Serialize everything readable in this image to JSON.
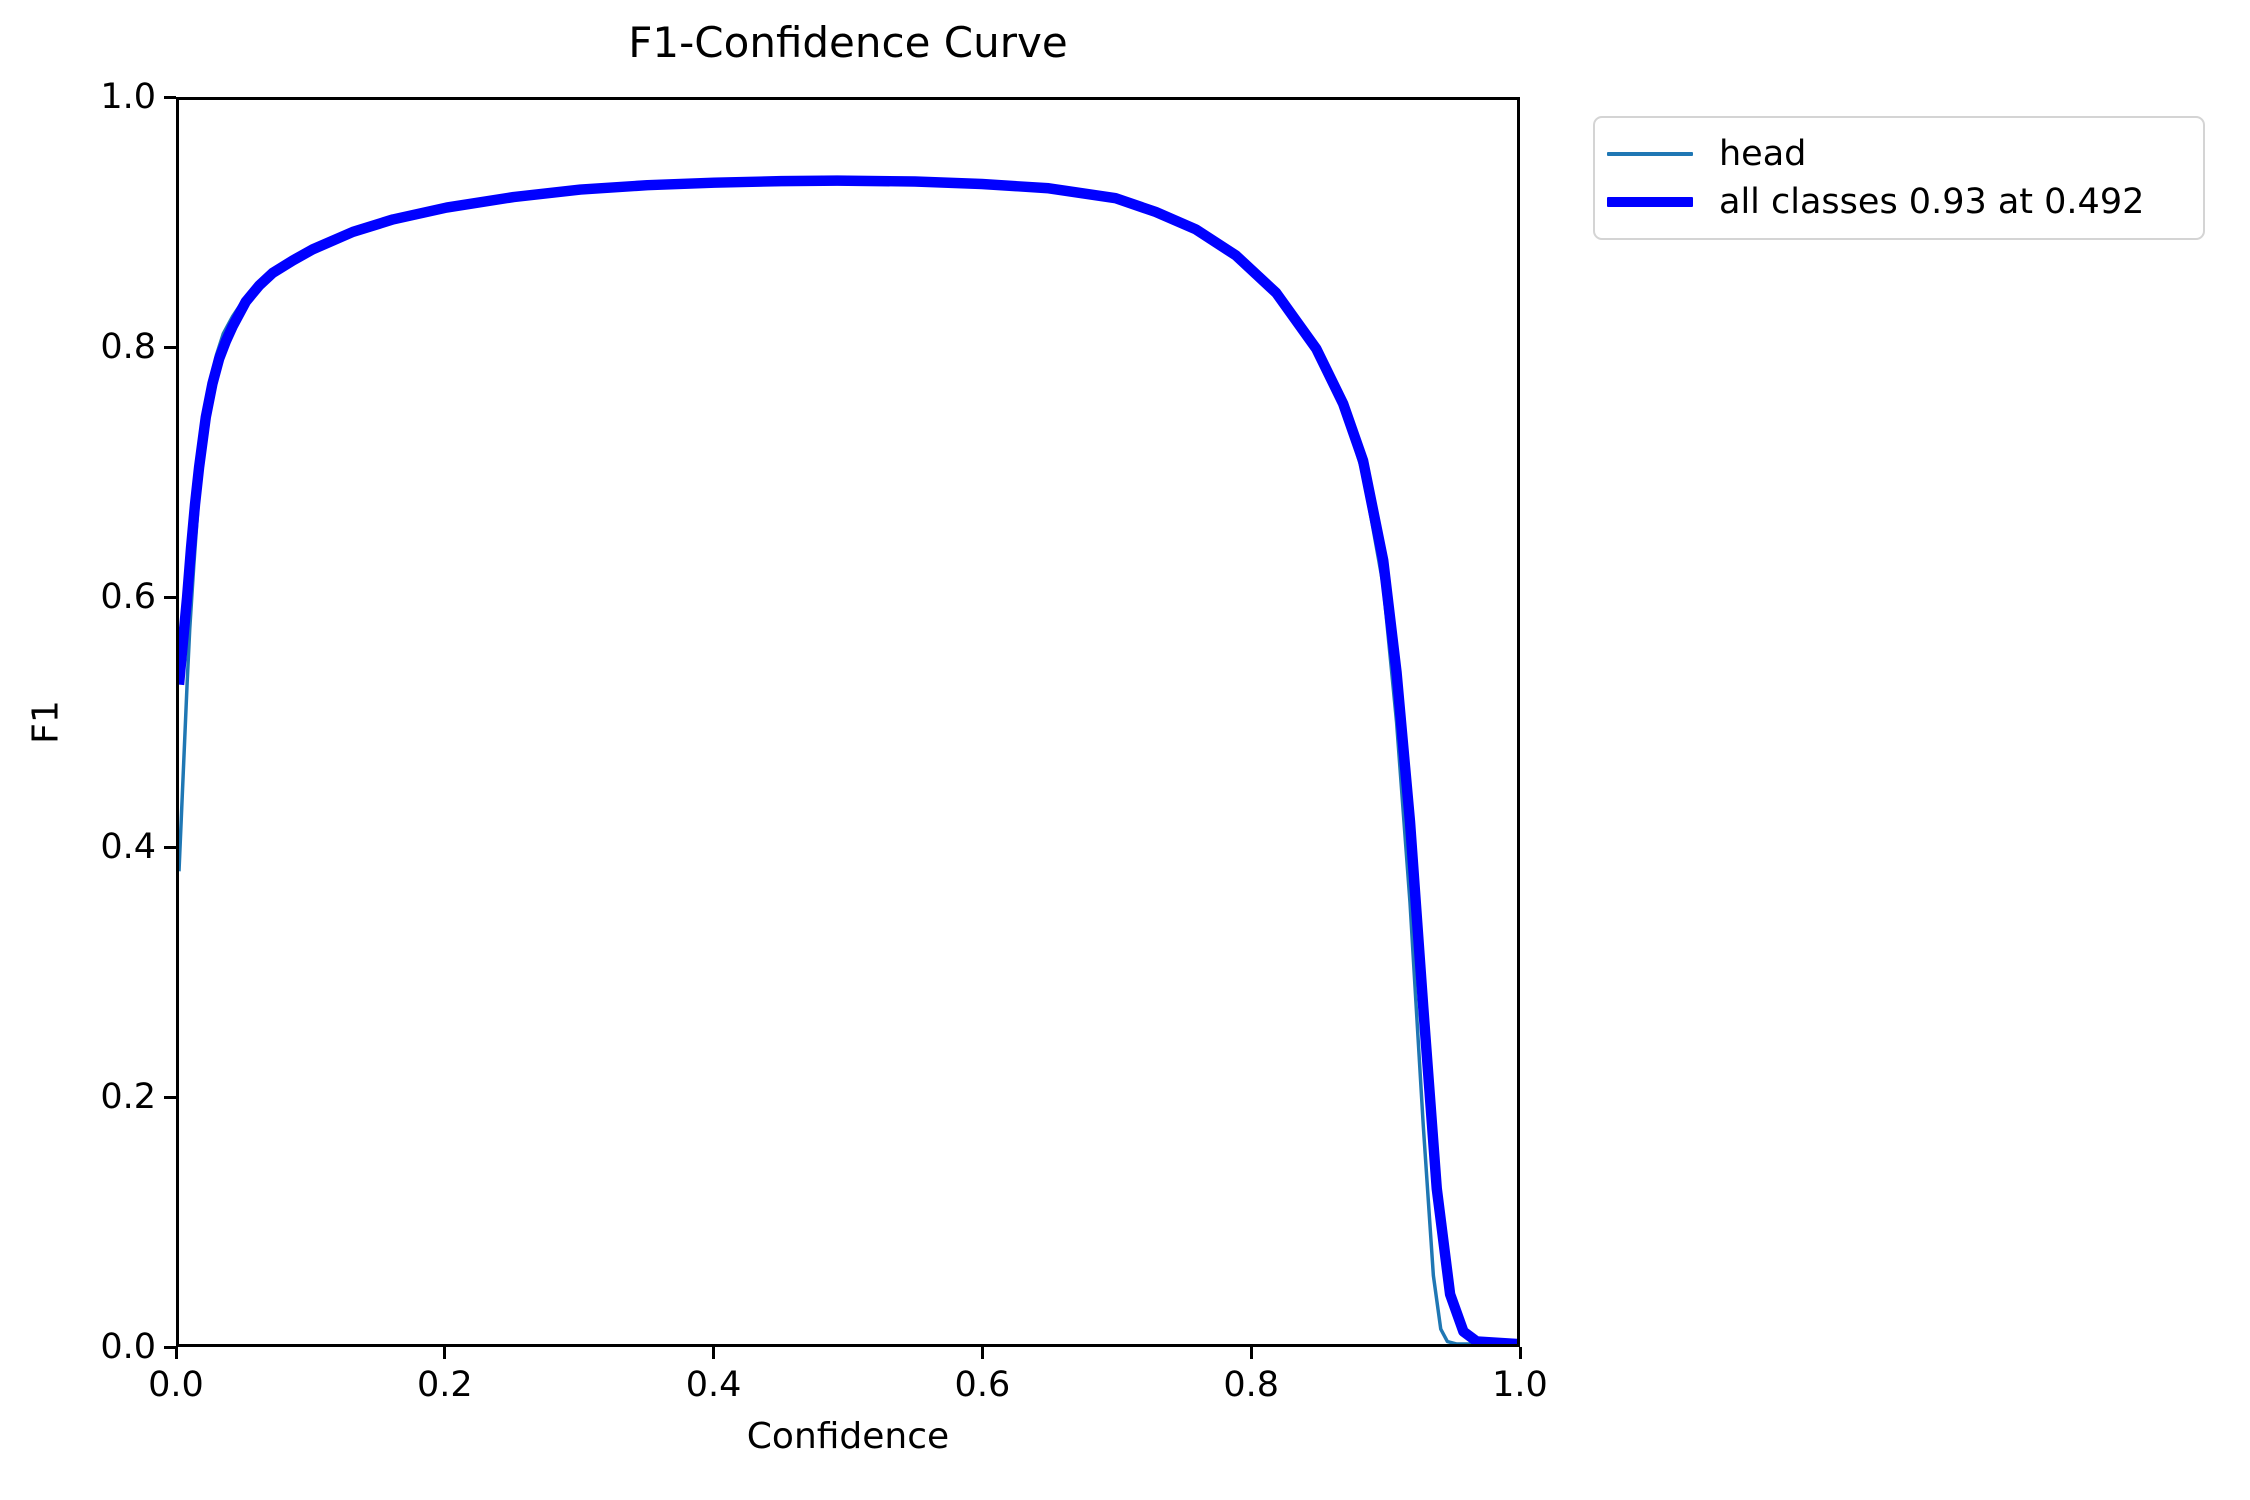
{
  "accent_colors": {
    "head_line": "#1f77b4",
    "all_classes_line": "#0000ff",
    "axis": "#000000",
    "legend_border": "#d4d4d4"
  },
  "chart_data": {
    "type": "line",
    "title": "F1-Confidence Curve",
    "xlabel": "Confidence",
    "ylabel": "F1",
    "xlim": [
      0.0,
      1.0
    ],
    "ylim": [
      0.0,
      1.0
    ],
    "grid": false,
    "legend_position": "outside-upper-right",
    "x_ticks": {
      "values": [
        0.0,
        0.2,
        0.4,
        0.6,
        0.8,
        1.0
      ],
      "labels": [
        "0.0",
        "0.2",
        "0.4",
        "0.6",
        "0.8",
        "1.0"
      ]
    },
    "y_ticks": {
      "values": [
        0.0,
        0.2,
        0.4,
        0.6,
        0.8,
        1.0
      ],
      "labels": [
        "0.0",
        "0.2",
        "0.4",
        "0.6",
        "0.8",
        "1.0"
      ]
    },
    "best_f1": 0.93,
    "best_confidence": 0.492,
    "series": [
      {
        "name": "head",
        "label": "head",
        "color": "#1f77b4",
        "stroke_px": 3.5,
        "points": [
          [
            0.0,
            0.38
          ],
          [
            0.002,
            0.43
          ],
          [
            0.004,
            0.48
          ],
          [
            0.006,
            0.53
          ],
          [
            0.008,
            0.575
          ],
          [
            0.011,
            0.625
          ],
          [
            0.014,
            0.67
          ],
          [
            0.017,
            0.71
          ],
          [
            0.02,
            0.745
          ],
          [
            0.024,
            0.775
          ],
          [
            0.028,
            0.795
          ],
          [
            0.033,
            0.812
          ],
          [
            0.04,
            0.826
          ],
          [
            0.05,
            0.842
          ],
          [
            0.06,
            0.854
          ],
          [
            0.07,
            0.863
          ],
          [
            0.085,
            0.872
          ],
          [
            0.1,
            0.881
          ],
          [
            0.13,
            0.894
          ],
          [
            0.16,
            0.904
          ],
          [
            0.2,
            0.9135
          ],
          [
            0.25,
            0.922
          ],
          [
            0.3,
            0.928
          ],
          [
            0.35,
            0.9315
          ],
          [
            0.4,
            0.9335
          ],
          [
            0.45,
            0.9348
          ],
          [
            0.5,
            0.935
          ],
          [
            0.55,
            0.9345
          ],
          [
            0.6,
            0.9325
          ],
          [
            0.65,
            0.929
          ],
          [
            0.7,
            0.921
          ],
          [
            0.73,
            0.91
          ],
          [
            0.76,
            0.896
          ],
          [
            0.79,
            0.875
          ],
          [
            0.82,
            0.845
          ],
          [
            0.85,
            0.798
          ],
          [
            0.87,
            0.752
          ],
          [
            0.885,
            0.7
          ],
          [
            0.9,
            0.61
          ],
          [
            0.91,
            0.5
          ],
          [
            0.92,
            0.355
          ],
          [
            0.93,
            0.175
          ],
          [
            0.9375,
            0.055
          ],
          [
            0.943,
            0.012
          ],
          [
            0.948,
            0.002
          ],
          [
            0.955,
            0.0
          ],
          [
            1.0,
            0.0
          ]
        ]
      },
      {
        "name": "all-classes",
        "label": "all classes 0.93 at 0.492",
        "color": "#0000ff",
        "stroke_px": 10.5,
        "points": [
          [
            0.0,
            0.53
          ],
          [
            0.003,
            0.565
          ],
          [
            0.006,
            0.6
          ],
          [
            0.009,
            0.64
          ],
          [
            0.012,
            0.675
          ],
          [
            0.015,
            0.705
          ],
          [
            0.02,
            0.745
          ],
          [
            0.025,
            0.772
          ],
          [
            0.03,
            0.792
          ],
          [
            0.035,
            0.806
          ],
          [
            0.04,
            0.818
          ],
          [
            0.05,
            0.838
          ],
          [
            0.06,
            0.851
          ],
          [
            0.07,
            0.861
          ],
          [
            0.085,
            0.871
          ],
          [
            0.1,
            0.88
          ],
          [
            0.13,
            0.894
          ],
          [
            0.16,
            0.904
          ],
          [
            0.2,
            0.9135
          ],
          [
            0.25,
            0.922
          ],
          [
            0.3,
            0.928
          ],
          [
            0.35,
            0.9315
          ],
          [
            0.4,
            0.9335
          ],
          [
            0.45,
            0.9348
          ],
          [
            0.492,
            0.9352
          ],
          [
            0.55,
            0.9345
          ],
          [
            0.6,
            0.9325
          ],
          [
            0.65,
            0.929
          ],
          [
            0.7,
            0.921
          ],
          [
            0.73,
            0.91
          ],
          [
            0.76,
            0.896
          ],
          [
            0.79,
            0.875
          ],
          [
            0.82,
            0.845
          ],
          [
            0.85,
            0.8
          ],
          [
            0.87,
            0.756
          ],
          [
            0.885,
            0.71
          ],
          [
            0.9,
            0.63
          ],
          [
            0.91,
            0.54
          ],
          [
            0.92,
            0.42
          ],
          [
            0.93,
            0.27
          ],
          [
            0.94,
            0.125
          ],
          [
            0.95,
            0.04
          ],
          [
            0.96,
            0.01
          ],
          [
            0.97,
            0.002
          ],
          [
            1.0,
            0.0
          ]
        ]
      }
    ]
  }
}
